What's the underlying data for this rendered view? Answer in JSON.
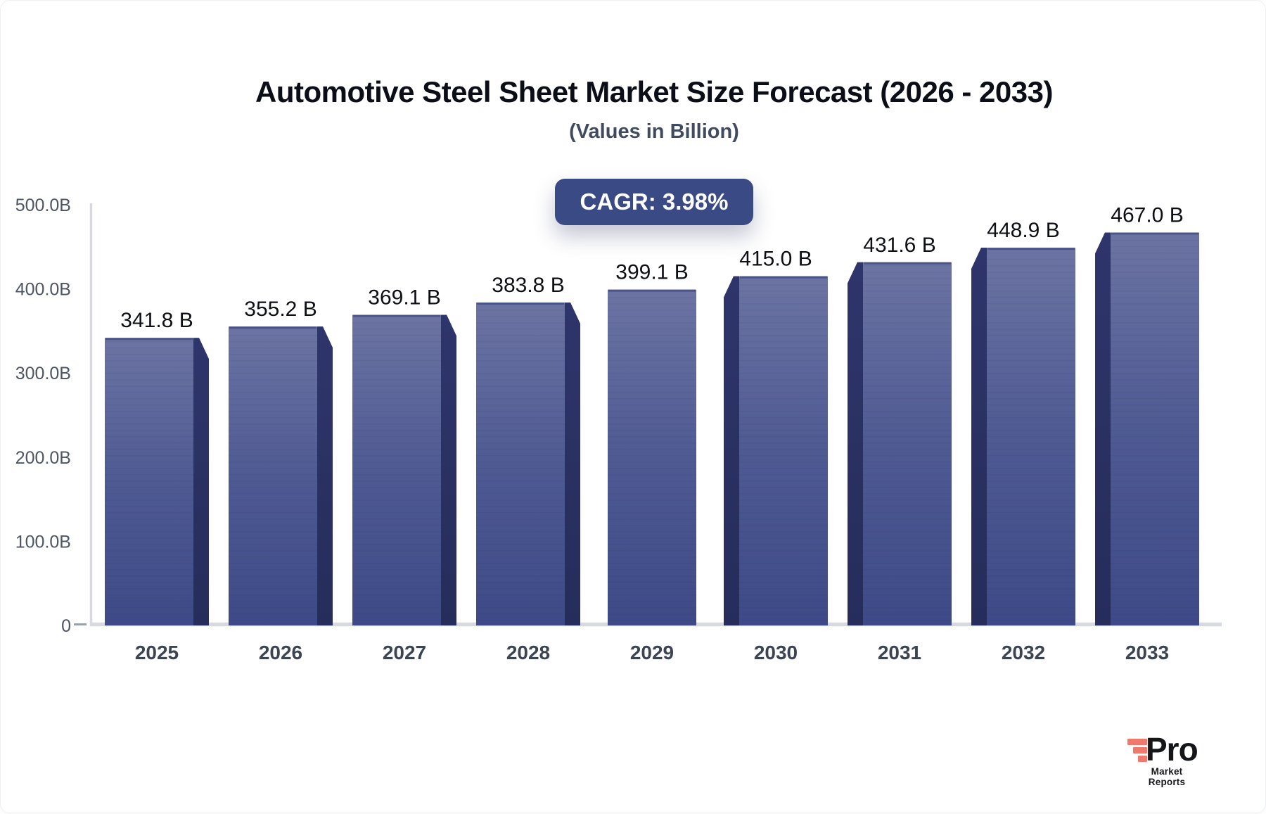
{
  "page": {
    "title": "Automotive Steel Sheet Market Size Forecast (2026 - 2033)",
    "subtitle": "(Values in Billion)",
    "cagr_badge": "CAGR: 3.98%"
  },
  "chart_data": {
    "type": "bar",
    "title": "Automotive Steel Sheet Market Size Forecast (2026 - 2033)",
    "subtitle": "(Values in Billion)",
    "unit": "Billion",
    "categories": [
      "2025",
      "2026",
      "2027",
      "2028",
      "2029",
      "2030",
      "2031",
      "2032",
      "2033"
    ],
    "values": [
      341.8,
      355.2,
      369.1,
      383.8,
      399.1,
      415.0,
      431.6,
      448.9,
      467.0
    ],
    "labels": [
      "341.8 B",
      "355.2 B",
      "369.1 B",
      "383.8 B",
      "399.1 B",
      "415.0 B",
      "431.6 B",
      "448.9 B",
      "467.0 B"
    ],
    "xlabel": "",
    "ylabel": "",
    "ylim": [
      0,
      500
    ],
    "y_ticks": [
      {
        "label": "500.0B",
        "value": 500
      },
      {
        "label": "400.0B",
        "value": 400
      },
      {
        "label": "300.0B",
        "value": 300
      },
      {
        "label": "200.0B",
        "value": 200
      },
      {
        "label": "100.0B",
        "value": 100
      },
      {
        "label": "0",
        "value": 0
      }
    ],
    "grid": "off",
    "legend": "none",
    "cagr_percent": 3.98
  },
  "colors": {
    "bar_face_top": "#6b74a2",
    "bar_face_mid": "#4f5a93",
    "bar_face_bottom": "#3e4a87",
    "bar_side_top": "#2e356b",
    "bar_side_bottom": "#262d5a",
    "bar_top_edge": "#4b5487",
    "badge_bg": "#3a4a85",
    "axis_line": "#d7d9de",
    "tick_dash": "#9aa0ab",
    "value_label_text": "#0d0f15",
    "axis_text": "#4d5564",
    "x_axis_text": "#3c4454"
  },
  "logo": {
    "name": "Pro",
    "tagline": "Market Reports",
    "accent": "#ef796d"
  }
}
